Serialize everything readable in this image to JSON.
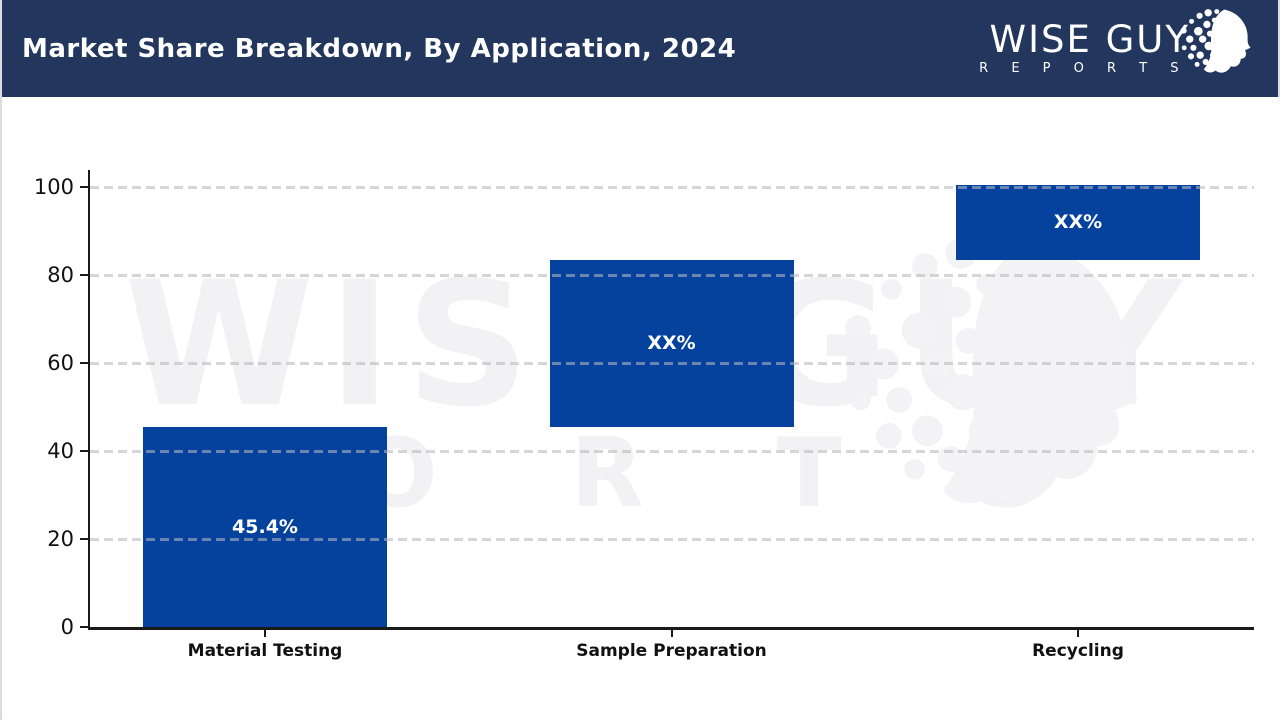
{
  "header": {
    "title": "Market Share Breakdown, By Application, 2024",
    "logo": {
      "line1": "WISE GUY",
      "line2": "R E P O R T S"
    },
    "bg_color": "#22365e"
  },
  "watermark": {
    "line1": "WISE GUY",
    "line2": "P  O  R  T  S"
  },
  "chart_data": {
    "type": "bar",
    "variant": "floating-segment-waterfall",
    "title": "Market Share Breakdown, By Application, 2024",
    "categories": [
      "Material Testing",
      "Sample Preparation",
      "Recycling"
    ],
    "segments": [
      {
        "category": "Material Testing",
        "start": 0,
        "end": 45.4,
        "label": "45.4%"
      },
      {
        "category": "Sample Preparation",
        "start": 45.5,
        "end": 83.5,
        "label": "XX%"
      },
      {
        "category": "Recycling",
        "start": 83.5,
        "end": 100.5,
        "label": "XX%"
      }
    ],
    "yticks": [
      0,
      20,
      40,
      60,
      80,
      100
    ],
    "ylim": [
      0,
      100
    ],
    "xlabel": "",
    "ylabel": "",
    "legend": "none",
    "grid": "horizontal dashed, drawn over bars",
    "bar_color": "#04429e",
    "bar_label_color": "#ffffff",
    "axis_color": "#1a1a1a",
    "grid_color": "#bcbec2"
  }
}
